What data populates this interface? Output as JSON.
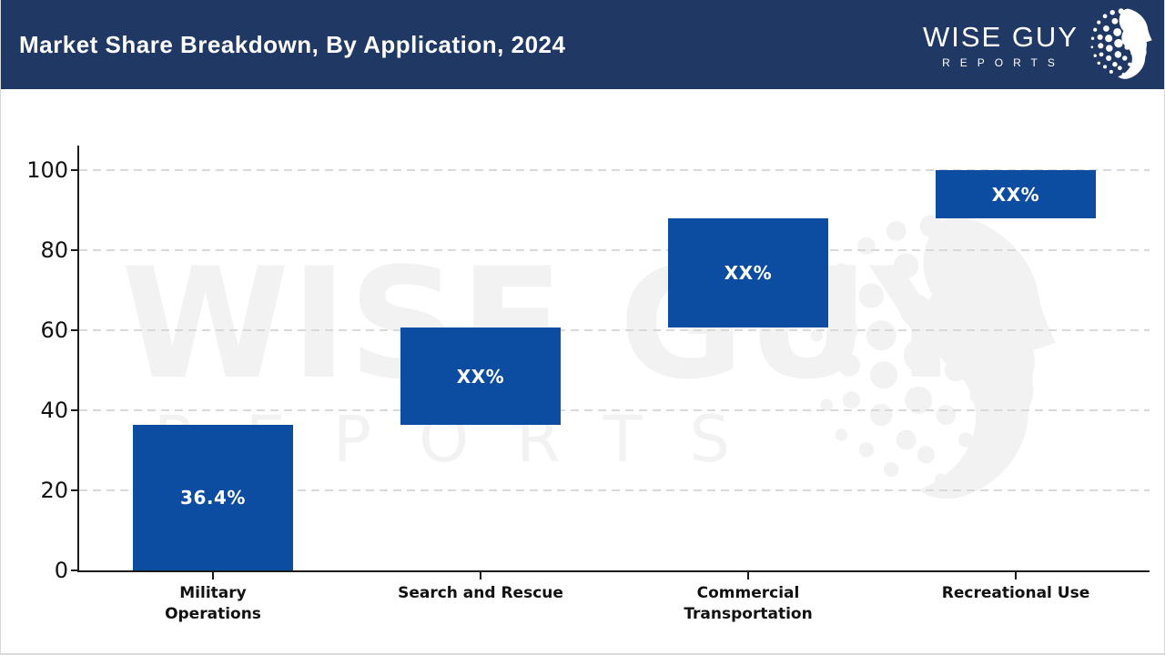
{
  "header": {
    "title": "Market Share Breakdown, By Application, 2024",
    "bg_color": "#1f3864",
    "text_color": "#ffffff",
    "logo": {
      "line1": "WISE GUY",
      "line2": "REPORTS"
    }
  },
  "watermark": {
    "line1": "WISE GUY",
    "line2": "REPORTS",
    "color": "#f2f2f2"
  },
  "chart_data": {
    "type": "bar",
    "subtype": "waterfall",
    "title": "Market Share Breakdown, By Application, 2024",
    "categories": [
      "Military Operations",
      "Search and Rescue",
      "Commercial Transportation",
      "Recreational Use"
    ],
    "xtick_labels": [
      "Military\nOperations",
      "Search and Rescue",
      "Commercial\nTransportation",
      "Recreational Use"
    ],
    "segments": [
      {
        "category": "Military Operations",
        "start": 0,
        "end": 36.4,
        "label": "36.4%"
      },
      {
        "category": "Search and Rescue",
        "start": 36.4,
        "end": 60.6,
        "label": "XX%"
      },
      {
        "category": "Commercial Transportation",
        "start": 60.6,
        "end": 87.9,
        "label": "XX%"
      },
      {
        "category": "Recreational Use",
        "start": 87.9,
        "end": 100,
        "label": "XX%"
      }
    ],
    "values_estimated": [
      36.4,
      24.2,
      27.3,
      12.1
    ],
    "xlabel": "",
    "ylabel": "",
    "ylim": [
      0,
      100
    ],
    "yticks": [
      0,
      20,
      40,
      60,
      80,
      100
    ],
    "grid": "horizontal-dashed",
    "legend_position": "none",
    "bar_color": "#0d4da1",
    "bar_label_color": "#ffffff",
    "axis_color": "#1a1a1a",
    "gridline_color": "#d9d9d9"
  }
}
